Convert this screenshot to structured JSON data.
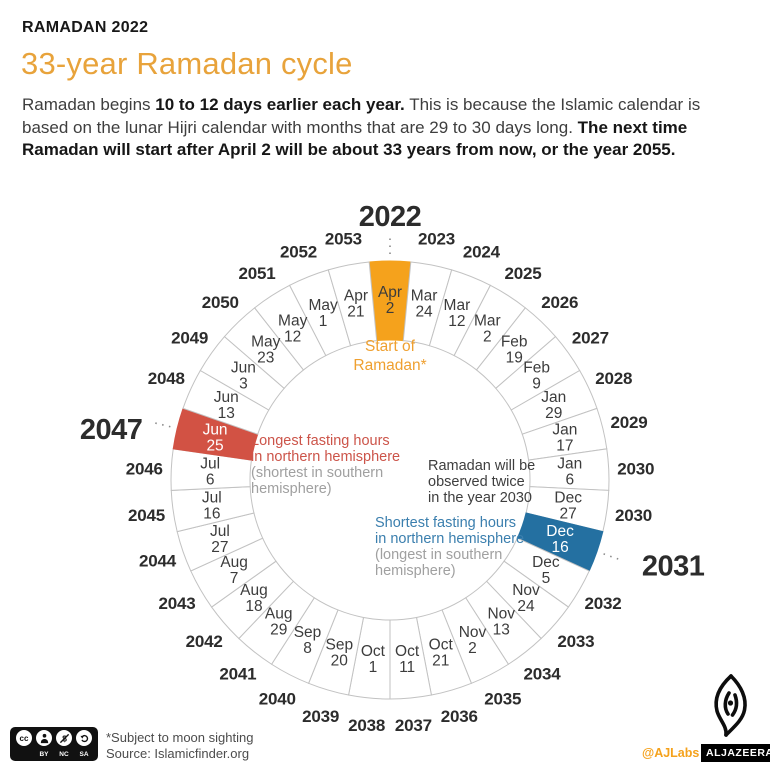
{
  "header": {
    "kicker": "RAMADAN 2022",
    "title": "33-year Ramadan cycle",
    "intro_parts": [
      {
        "text": "Ramadan begins ",
        "bold": false
      },
      {
        "text": "10 to 12 days earlier each year.",
        "bold": true
      },
      {
        "text": " This is because the Islamic calendar is based on the lunar Hijri calendar with months that are 29 to 30 days long. ",
        "bold": false
      },
      {
        "text": "The next time Ramadan will start after April 2 will be about 33 years from now, or the year 2055.",
        "bold": true
      }
    ]
  },
  "chart_data": {
    "type": "circular-cycle-diagram",
    "title": "33-year Ramadan cycle",
    "description": "Start date of Ramadan for each Gregorian year of the 33-year cycle, arranged clockwise in a ring starting at 2022",
    "direction": "clockwise",
    "segments": [
      {
        "year": "2022",
        "month": "Apr",
        "day": "2",
        "highlight": "orange",
        "emphasis": true
      },
      {
        "year": "2023",
        "month": "Mar",
        "day": "24"
      },
      {
        "year": "2024",
        "month": "Mar",
        "day": "12"
      },
      {
        "year": "2025",
        "month": "Mar",
        "day": "2"
      },
      {
        "year": "2026",
        "month": "Feb",
        "day": "19"
      },
      {
        "year": "2027",
        "month": "Feb",
        "day": "9"
      },
      {
        "year": "2028",
        "month": "Jan",
        "day": "29"
      },
      {
        "year": "2029",
        "month": "Jan",
        "day": "17"
      },
      {
        "year": "2030",
        "month": "Jan",
        "day": "6"
      },
      {
        "year": "2030",
        "month": "Dec",
        "day": "27"
      },
      {
        "year": "2031",
        "month": "Dec",
        "day": "16",
        "highlight": "blue",
        "emphasis": true
      },
      {
        "year": "2032",
        "month": "Dec",
        "day": "5"
      },
      {
        "year": "2033",
        "month": "Nov",
        "day": "24"
      },
      {
        "year": "2034",
        "month": "Nov",
        "day": "13"
      },
      {
        "year": "2035",
        "month": "Nov",
        "day": "2"
      },
      {
        "year": "2036",
        "month": "Oct",
        "day": "21"
      },
      {
        "year": "2037",
        "month": "Oct",
        "day": "11"
      },
      {
        "year": "2038",
        "month": "Oct",
        "day": "1"
      },
      {
        "year": "2039",
        "month": "Sep",
        "day": "20"
      },
      {
        "year": "2040",
        "month": "Sep",
        "day": "8"
      },
      {
        "year": "2041",
        "month": "Aug",
        "day": "29"
      },
      {
        "year": "2042",
        "month": "Aug",
        "day": "18"
      },
      {
        "year": "2043",
        "month": "Aug",
        "day": "7"
      },
      {
        "year": "2044",
        "month": "Jul",
        "day": "27"
      },
      {
        "year": "2045",
        "month": "Jul",
        "day": "16"
      },
      {
        "year": "2046",
        "month": "Jul",
        "day": "6"
      },
      {
        "year": "2047",
        "month": "Jun",
        "day": "25",
        "highlight": "red",
        "emphasis": true
      },
      {
        "year": "2048",
        "month": "Jun",
        "day": "13"
      },
      {
        "year": "2049",
        "month": "Jun",
        "day": "3"
      },
      {
        "year": "2050",
        "month": "May",
        "day": "23"
      },
      {
        "year": "2051",
        "month": "May",
        "day": "12"
      },
      {
        "year": "2052",
        "month": "May",
        "day": "1"
      },
      {
        "year": "2053",
        "month": "Apr",
        "day": "21"
      }
    ],
    "annotations": {
      "start": {
        "lines": [
          "Start of",
          "Ramadan*"
        ]
      },
      "longest": {
        "lines": [
          "Longest fasting hours",
          "in northern hemisphere"
        ],
        "sub_lines": [
          "(shortest in southern",
          "hemisphere)"
        ]
      },
      "twice": {
        "lines": [
          "Ramadan will be",
          "observed twice",
          "in the year 2030"
        ]
      },
      "shortest": {
        "lines": [
          "Shortest fasting hours",
          "in northern hemisphere"
        ],
        "sub_lines": [
          "(longest in southern",
          "hemisphere)"
        ]
      }
    },
    "colors": {
      "orange": "#F5A21C",
      "red": "#D25244",
      "blue": "#2470A1",
      "title_orange": "#E8A33B",
      "orange_text": "#EFA030",
      "red_text": "#CC5449",
      "blue_text": "#3B7FAE",
      "gray_text": "#A0A0A0",
      "ring_stroke": "#C2C2C2",
      "year_ink": "#2C2C2C"
    }
  },
  "footer": {
    "note": "*Subject to moon sighting",
    "source": "Source: Islamicfinder.org",
    "credit": "@AJLabs",
    "brand": "ALJAZEERA",
    "license": {
      "cc": "cc",
      "labels": [
        "BY",
        "NC",
        "SA"
      ]
    }
  }
}
